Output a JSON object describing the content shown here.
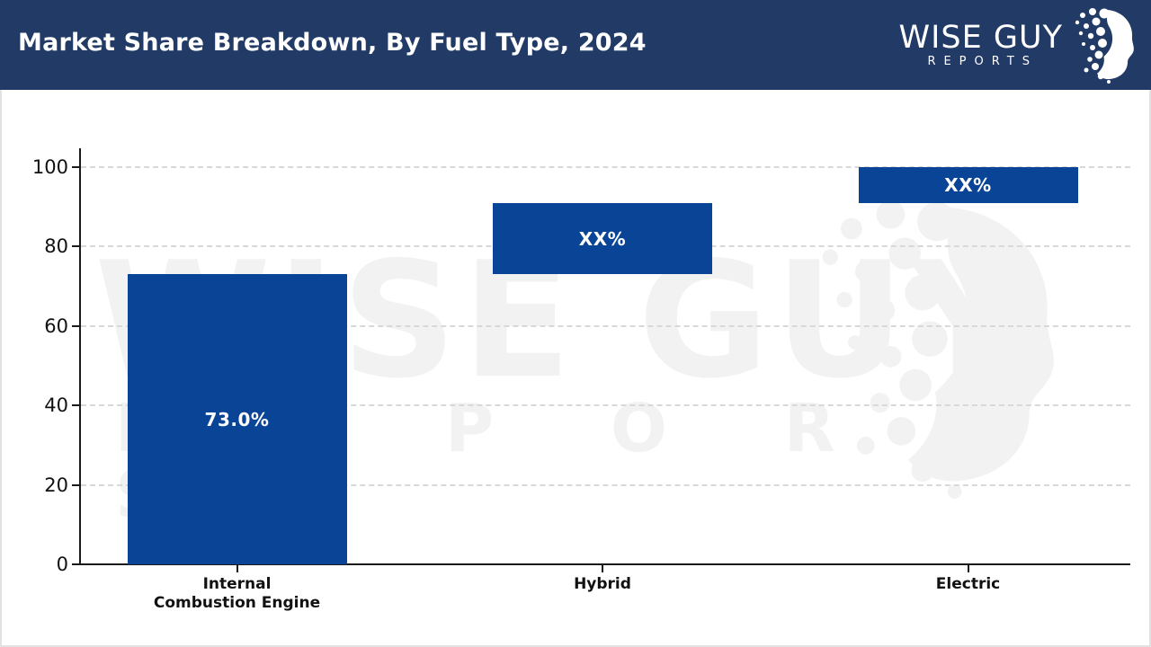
{
  "header": {
    "title": "Market Share Breakdown, By Fuel Type, 2024",
    "logo": {
      "line1": "WISE GUY",
      "line2": "REPORTS",
      "head_icon": "dotted-face-profile"
    },
    "bg_color": "#213a66"
  },
  "watermark": {
    "line1": "WISE GUY",
    "line2": "REPORTS",
    "head_icon": "dotted-face-profile",
    "color": "#f2f2f2"
  },
  "chart_data": {
    "type": "bar",
    "variant": "waterfall",
    "title": "Market Share Breakdown, By Fuel Type, 2024",
    "categories": [
      "Internal Combustion Engine",
      "Hybrid",
      "Electric"
    ],
    "category_lines": [
      [
        "Internal",
        "Combustion Engine"
      ],
      [
        "Hybrid"
      ],
      [
        "Electric"
      ]
    ],
    "segments": [
      {
        "category": "Internal Combustion Engine",
        "start": 0,
        "end": 73,
        "value_label": "73.0%"
      },
      {
        "category": "Hybrid",
        "start": 73,
        "end": 91,
        "value_label": "XX%"
      },
      {
        "category": "Electric",
        "start": 91,
        "end": 100,
        "value_label": "XX%"
      }
    ],
    "xlabel": "",
    "ylabel": "",
    "ylim": [
      0,
      100
    ],
    "yticks": [
      0,
      20,
      40,
      60,
      80,
      100
    ],
    "grid": {
      "horizontal": true,
      "style": "dashed",
      "color": "#d8d8d8"
    },
    "legend": "none",
    "bar_color": "#0a4496",
    "bar_label_color": "#ffffff",
    "axis_color": "#1a1a1a"
  }
}
